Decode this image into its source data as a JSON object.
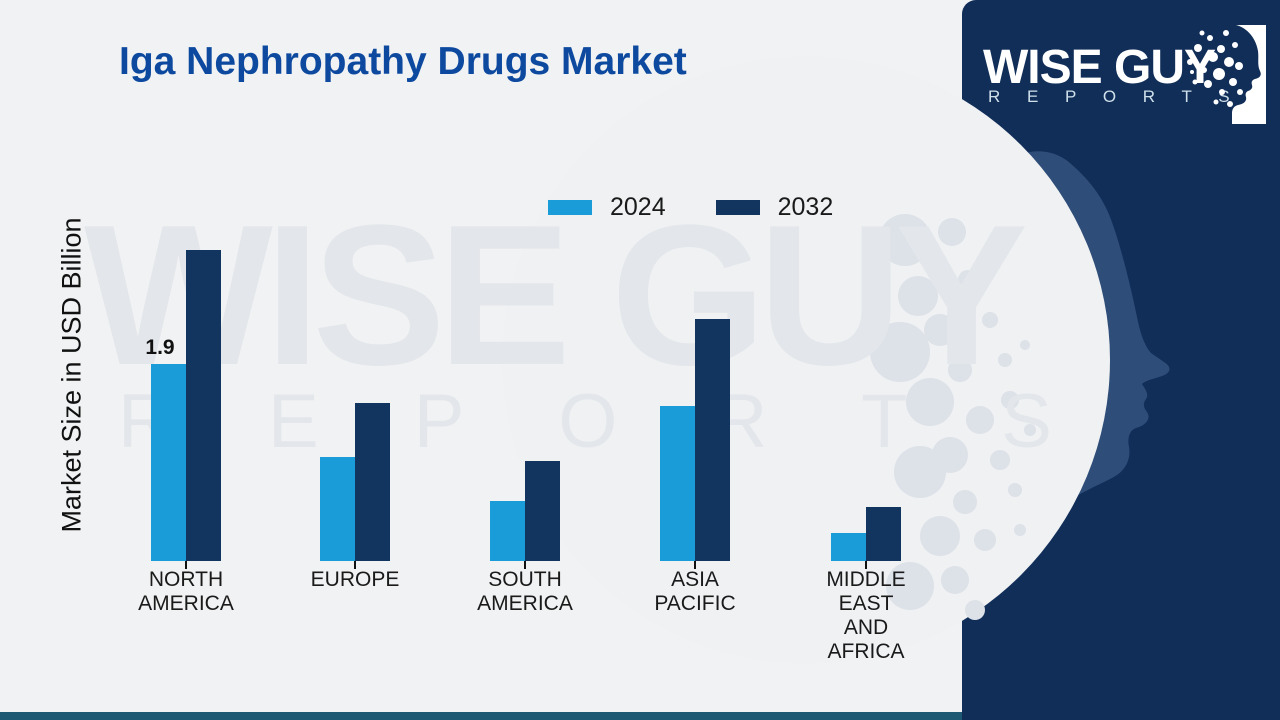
{
  "page": {
    "title": "Iga Nephropathy Drugs Market",
    "background_color": "#f1f2f3",
    "panel_color": "#112e59",
    "footer_bar_color": "#1d5972",
    "title_color": "#0d4a9f"
  },
  "logo": {
    "brand_line1": "WISE GUY",
    "brand_line2": "R E P O R T S"
  },
  "watermark": {
    "line1": "WISE GUY",
    "line2": "R E P O R T S"
  },
  "chart_data": {
    "type": "bar",
    "title": "Iga Nephropathy Drugs Market",
    "xlabel": "",
    "ylabel": "Market Size in USD Billion",
    "ylim": [
      0,
      3.2
    ],
    "grid": false,
    "legend_position": "top-right",
    "categories": [
      "NORTH AMERICA",
      "EUROPE",
      "SOUTH AMERICA",
      "ASIA PACIFIC",
      "MIDDLE EAST AND AFRICA"
    ],
    "category_display": [
      "NORTH\nAMERICA",
      "EUROPE",
      "SOUTH\nAMERICA",
      "ASIA\nPACIFIC",
      "MIDDLE\nEAST\nAND\nAFRICA"
    ],
    "series": [
      {
        "name": "2024",
        "color": "#199cd8",
        "values": [
          1.9,
          1.0,
          0.58,
          1.5,
          0.27
        ]
      },
      {
        "name": "2032",
        "color": "#123560",
        "values": [
          3.0,
          1.53,
          0.97,
          2.34,
          0.52
        ]
      }
    ],
    "annotations": [
      {
        "category_index": 0,
        "series": "2024",
        "text": "1.9"
      }
    ]
  }
}
